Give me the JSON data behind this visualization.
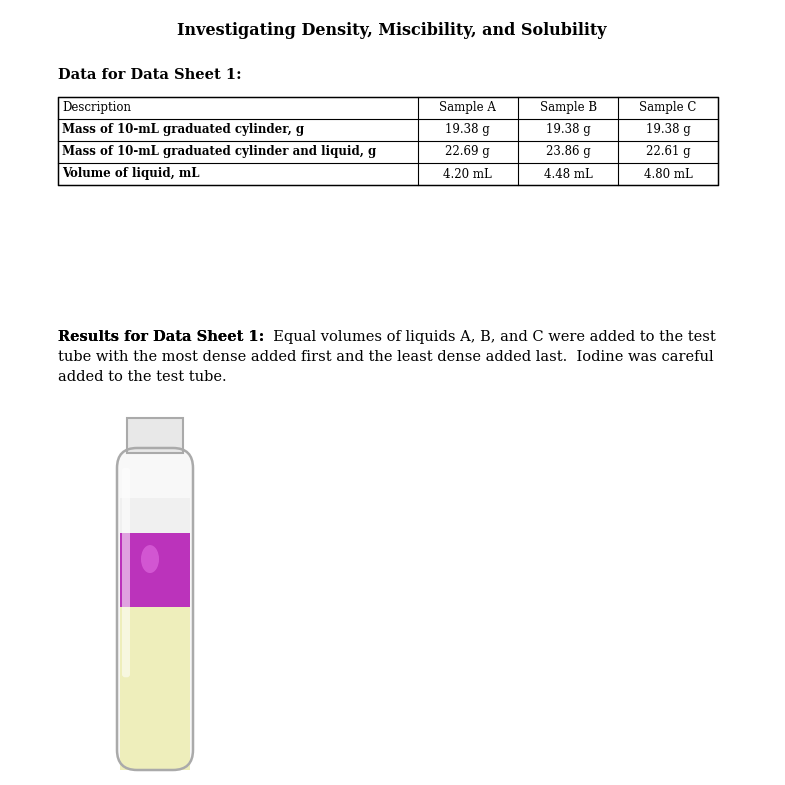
{
  "title": "Investigating Density, Miscibility, and Solubility",
  "section_header": "Data for Data Sheet 1:",
  "table_headers": [
    "Description",
    "Sample A",
    "Sample B",
    "Sample C"
  ],
  "table_rows": [
    [
      "Mass of 10-mL graduated cylinder, g",
      "19.38 g",
      "19.38 g",
      "19.38 g"
    ],
    [
      "Mass of 10-mL graduated cylinder and liquid, g",
      "22.69 g",
      "23.86 g",
      "22.61 g"
    ],
    [
      "Volume of liquid, mL",
      "4.20 mL",
      "4.48 mL",
      "4.80 mL"
    ]
  ],
  "results_bold": "Results for Data Sheet 1:",
  "results_text": " Equal volumes of liquids A, B, and C were added to the test tube with the most dense added first and the least dense added last.  Iodine was careful added to the test tube.",
  "bg_color": "#ffffff",
  "title_fontsize": 11.5,
  "header_fontsize": 10.5,
  "table_fontsize": 8.5,
  "results_fontsize": 10.5,
  "purple_color": "#BB33BB",
  "yellow_color": "#EEEEBB",
  "tube_outline": "#aaaaaa"
}
